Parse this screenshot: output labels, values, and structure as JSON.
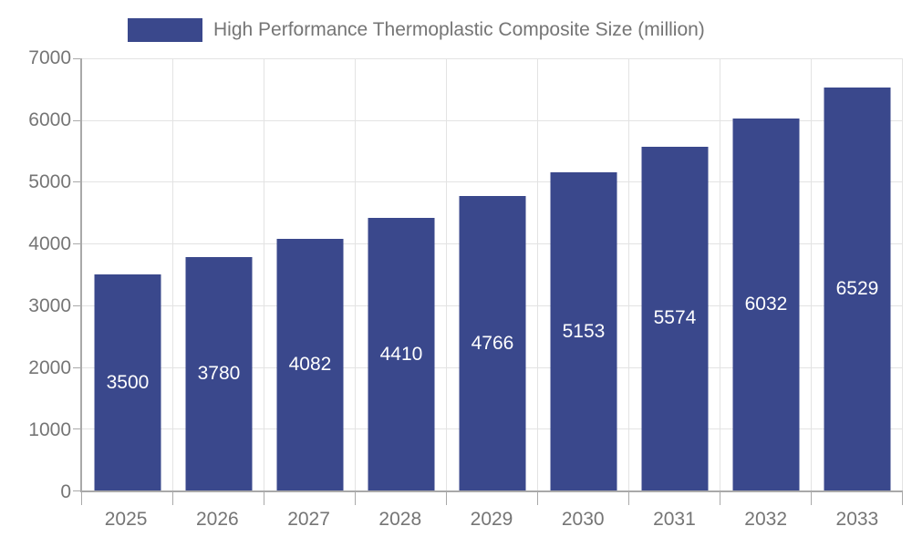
{
  "chart_data": {
    "type": "bar",
    "title": "High Performance Thermoplastic Composite Size (million)",
    "categories": [
      "2025",
      "2026",
      "2027",
      "2028",
      "2029",
      "2030",
      "2031",
      "2032",
      "2033"
    ],
    "values": [
      3500,
      3780,
      4082,
      4410,
      4766,
      5153,
      5574,
      6032,
      6529
    ],
    "xlabel": "",
    "ylabel": "",
    "ylim": [
      0,
      7000
    ],
    "yticks": [
      0,
      1000,
      2000,
      3000,
      4000,
      5000,
      6000,
      7000
    ],
    "grid": true,
    "legend_position": "top",
    "bar_width_fraction": 0.73,
    "colors": {
      "bar": "#3A488C",
      "bar_value_label": "#FFFFFF",
      "axis_label": "#757575",
      "legend_text": "#757575",
      "gridline": "#E3E3E3",
      "axis_line": "#A9A9A9"
    }
  }
}
